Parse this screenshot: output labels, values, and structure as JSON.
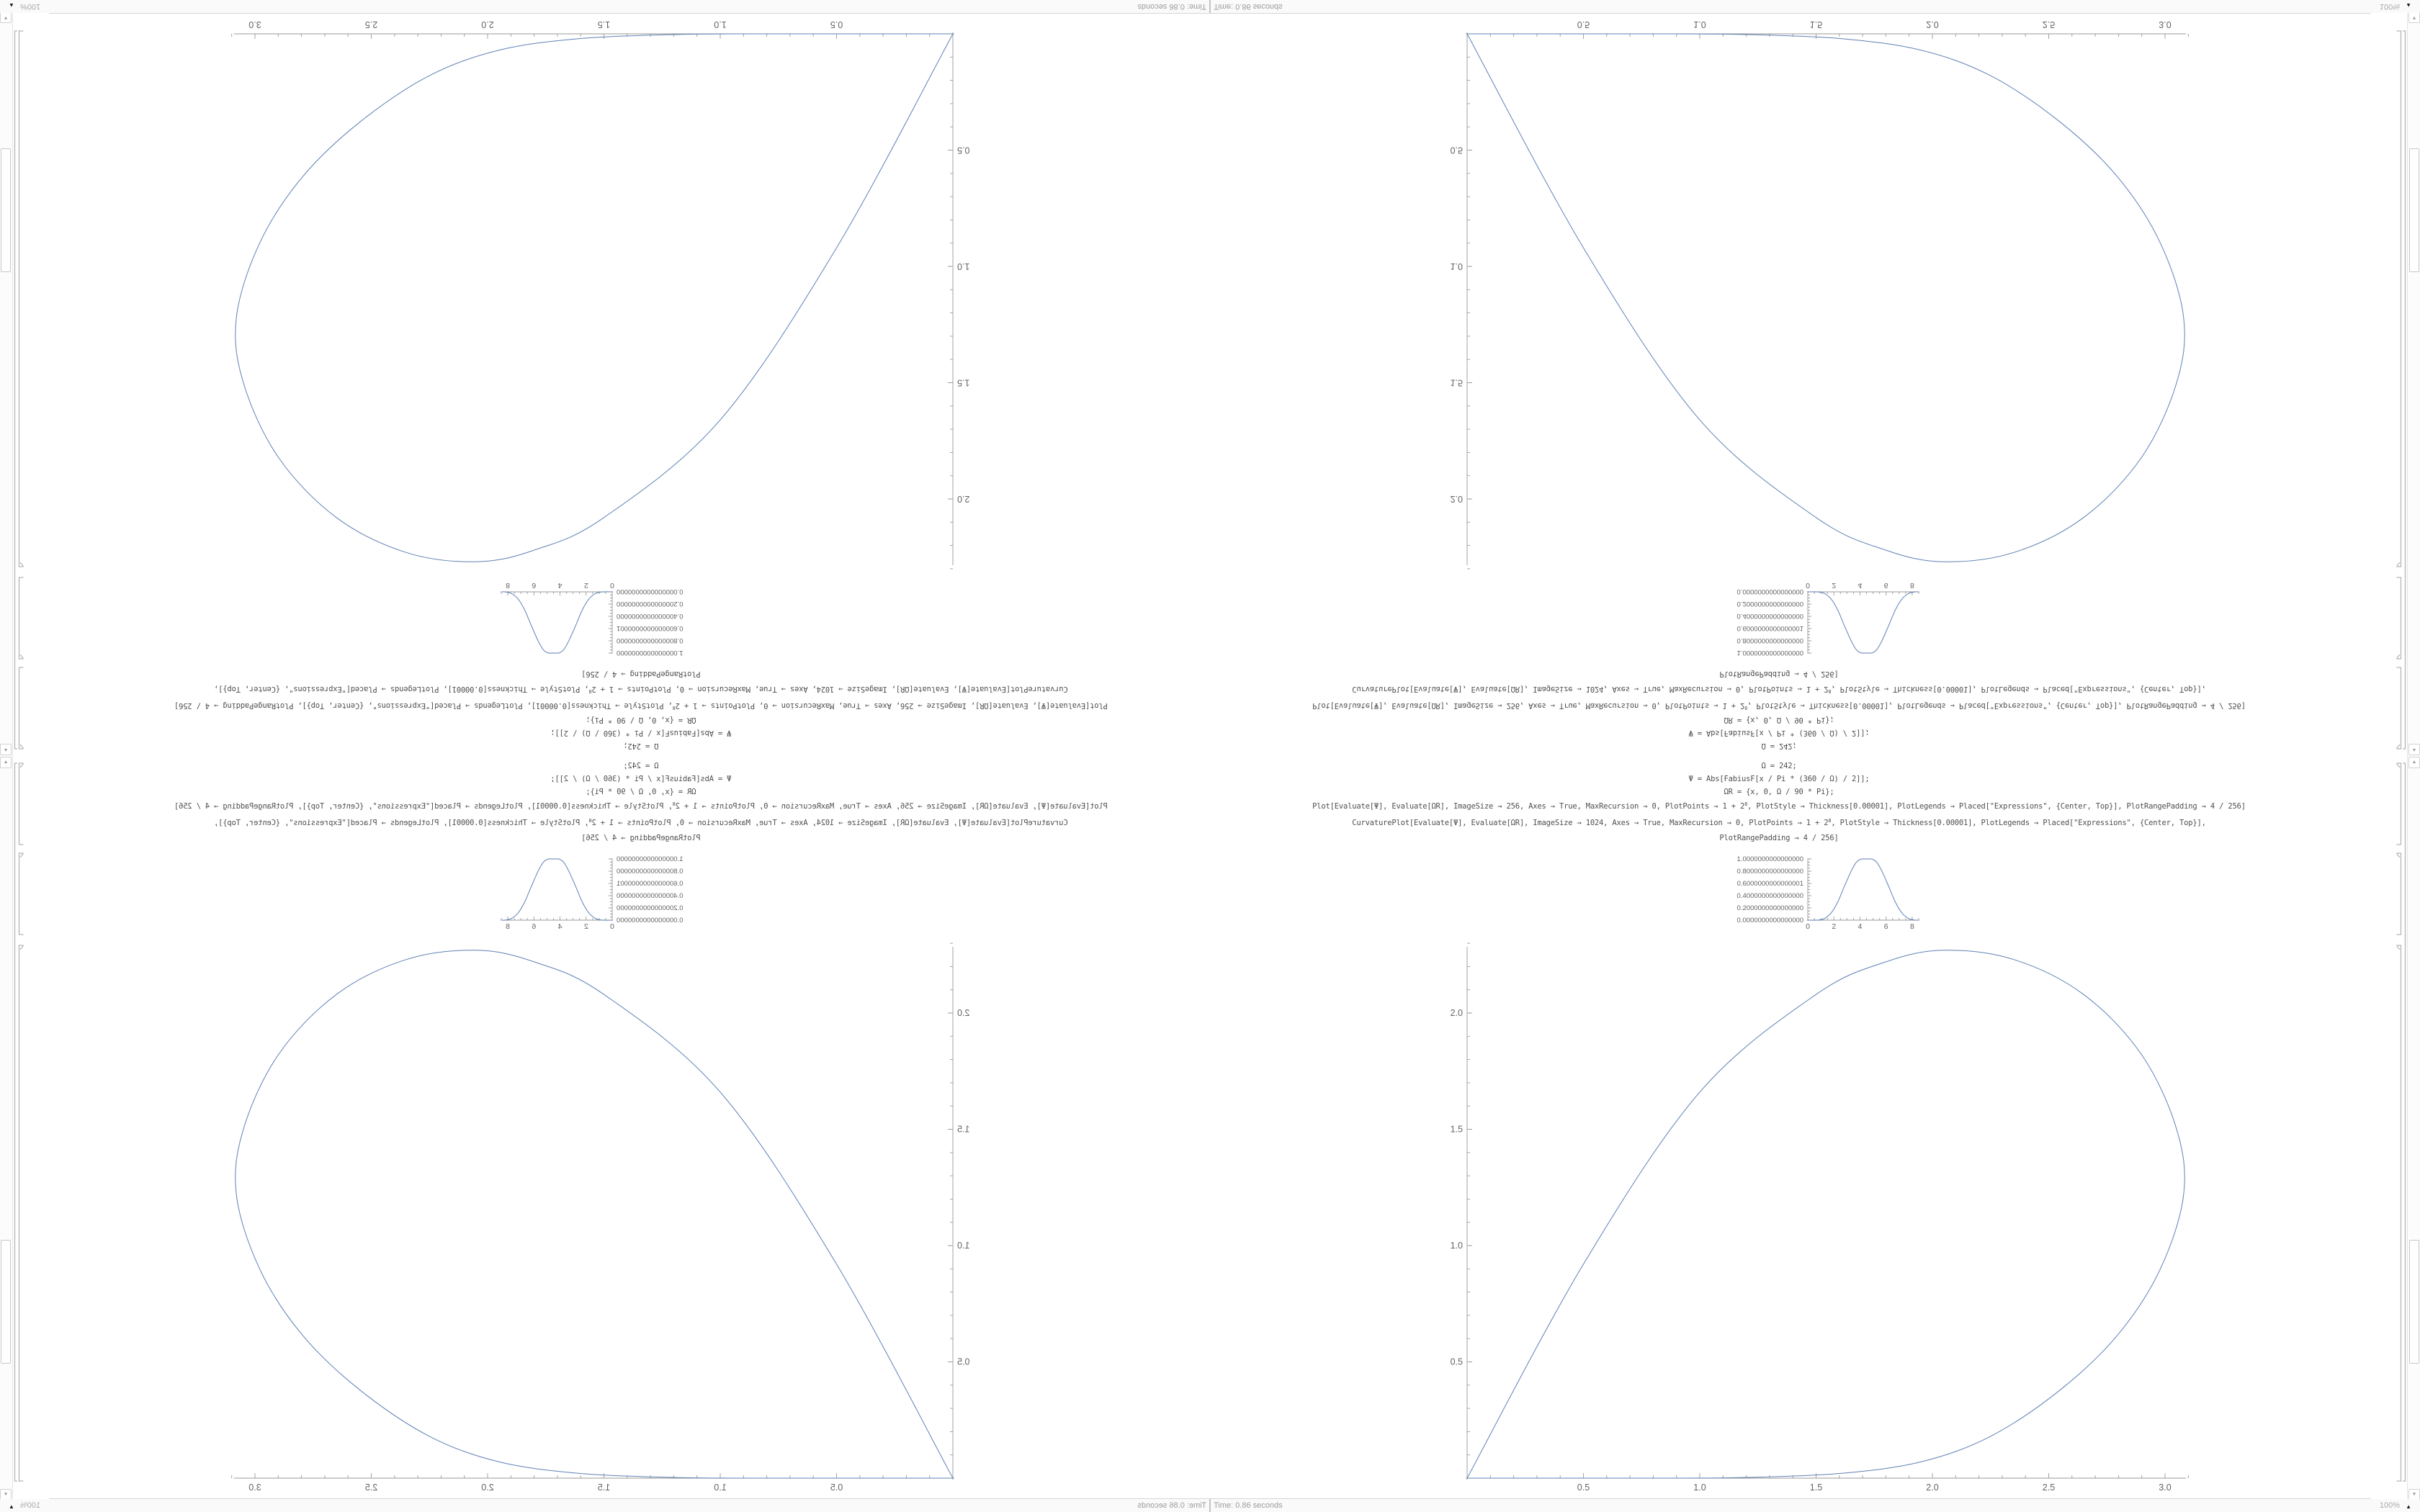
{
  "window": {
    "status_bar": {
      "time_label": "Time: 0.86 seconds",
      "zoom_label": "100%",
      "zoom_popup_icon": "▲"
    },
    "scrollbar": {
      "up_icon": "▲",
      "down_icon": "▼"
    }
  },
  "code_cell": {
    "line1": "Ω = 242;",
    "line2": "Ψ = Abs[FabiusF[x / Pi * (360 / Ω) / 2]];",
    "line3": "ΩR = {x, 0, Ω / 90 * Pi};",
    "line4a": "Plot[Evaluate[Ψ], Evaluate[ΩR], ImageSize → 256, Axes → True, MaxRecursion → 0, PlotPoints → 1 + 2",
    "line4sup": "8",
    "line4b": ", PlotStyle → Thickness[0.00001], PlotLegends → Placed[\"Expressions\", {Center, Top}], PlotRangePadding → 4 / 256]",
    "line5a": "CurvaturePlot[Evaluate[Ψ], Evaluate[ΩR], ImageSize → 1024, Axes → True, MaxRecursion → 0, PlotPoints → 1 + 2",
    "line5sup": "8",
    "line5b": ", PlotStyle → Thickness[0.00001], PlotLegends → Placed[\"Expressions\", {Center, Top}],",
    "line6": "PlotRangePadding → 4 / 256]"
  },
  "chart_data": [
    {
      "type": "line",
      "title": "",
      "points": [
        [
          0,
          0
        ],
        [
          0.85,
          0.002
        ],
        [
          1.3,
          0.03
        ],
        [
          1.8,
          0.12
        ],
        [
          2.3,
          0.3
        ],
        [
          2.8,
          0.55
        ],
        [
          3.3,
          0.79
        ],
        [
          3.7,
          0.94
        ],
        [
          4.05,
          0.995
        ],
        [
          4.5,
          1.0
        ],
        [
          4.95,
          0.995
        ],
        [
          5.3,
          0.94
        ],
        [
          5.7,
          0.79
        ],
        [
          6.2,
          0.55
        ],
        [
          6.7,
          0.3
        ],
        [
          7.2,
          0.12
        ],
        [
          7.7,
          0.03
        ],
        [
          8.15,
          0.002
        ],
        [
          8.45,
          0
        ]
      ],
      "xticks": [
        0,
        2,
        4,
        6,
        8
      ],
      "xtick_labels": [
        "0",
        "2",
        "4",
        "6",
        "8"
      ],
      "yticks": [
        1.0,
        0.8,
        0.6,
        0.4,
        0.2,
        0.0
      ],
      "ytick_labels": [
        "1.0000000000000000",
        "0.8000000000000000",
        "0.6000000000000001",
        "0.4000000000000000",
        "0.2000000000000000",
        "0.0000000000000000"
      ],
      "xlim": [
        0,
        8.55
      ],
      "ylim": [
        0,
        1.01
      ],
      "grid": false,
      "color": "#5e81b5"
    },
    {
      "type": "line",
      "title": "",
      "points": [
        [
          0,
          0
        ],
        [
          0.5,
          0.92
        ],
        [
          1.0,
          1.66
        ],
        [
          1.5,
          2.08
        ],
        [
          1.8,
          2.22
        ],
        [
          2.05,
          2.27
        ],
        [
          2.35,
          2.23
        ],
        [
          2.65,
          2.08
        ],
        [
          2.9,
          1.82
        ],
        [
          3.05,
          1.5
        ],
        [
          3.08,
          1.22
        ],
        [
          2.98,
          0.9
        ],
        [
          2.8,
          0.62
        ],
        [
          2.55,
          0.38
        ],
        [
          2.25,
          0.18
        ],
        [
          1.95,
          0.07
        ],
        [
          1.6,
          0.02
        ],
        [
          1.2,
          0.003
        ],
        [
          0.9,
          0
        ],
        [
          0.45,
          0
        ],
        [
          0,
          0
        ]
      ],
      "xticks": [
        0.5,
        1.0,
        1.5,
        2.0,
        2.5,
        3.0
      ],
      "xtick_labels": [
        "0.5",
        "1.0",
        "1.5",
        "2.0",
        "2.5",
        "3.0"
      ],
      "yticks": [
        0.5,
        1.0,
        1.5,
        2.0
      ],
      "ytick_labels": [
        "0.5",
        "1.0",
        "1.5",
        "2.0"
      ],
      "xlim": [
        0,
        3.09
      ],
      "ylim": [
        0,
        2.285
      ],
      "grid": false,
      "color": "#5e81b5"
    }
  ]
}
